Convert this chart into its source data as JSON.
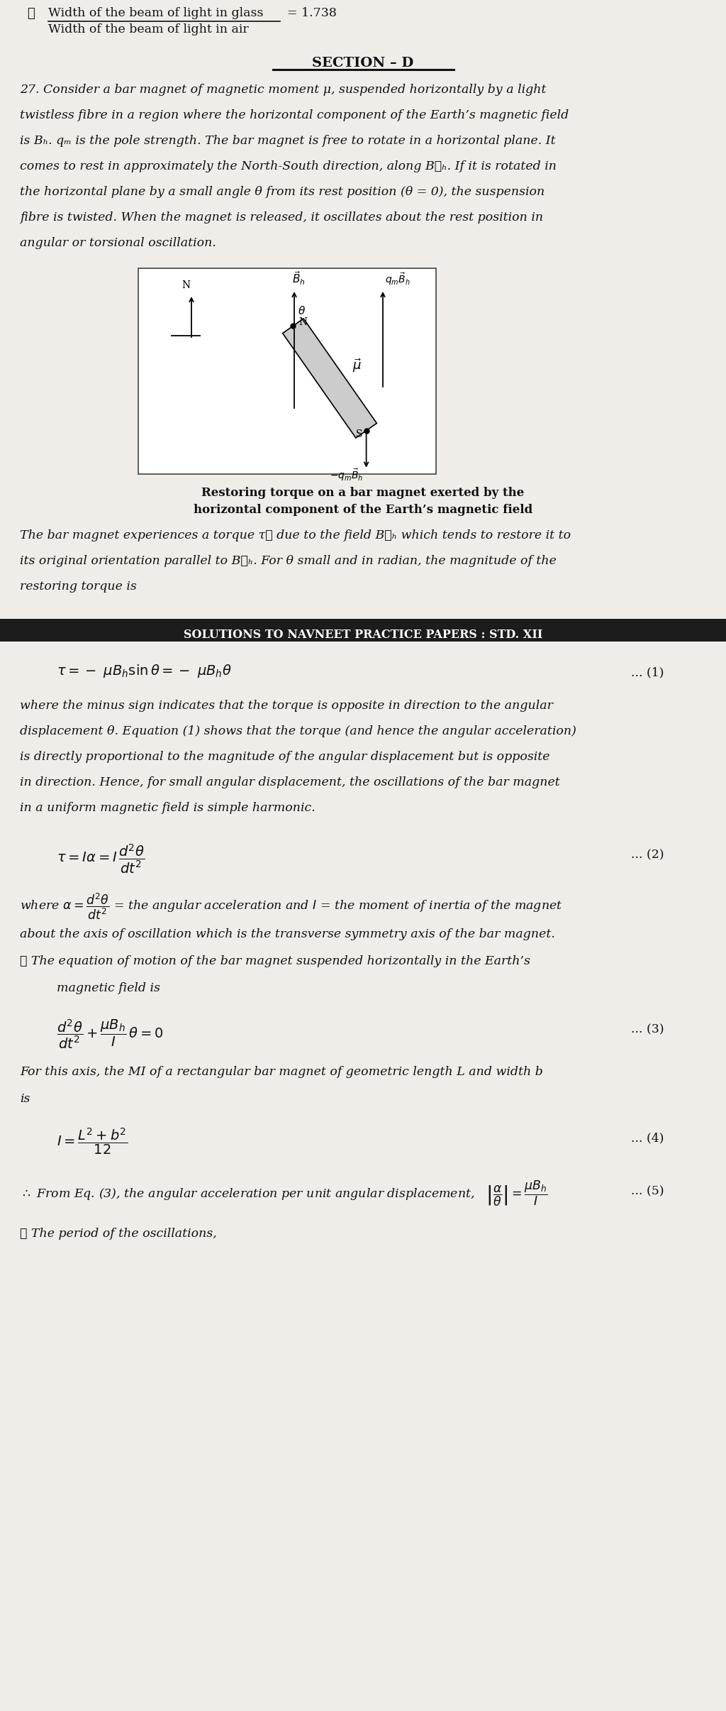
{
  "bg_color": "#f0ede8",
  "text_color": "#111111",
  "top_frac_num": "Width of the beam of light in glass",
  "top_frac_den": "Width of the beam of light in air",
  "top_frac_val": "= 1.738",
  "section_title": "SECTION – D",
  "black_bar_text": "SOLUTIONS TO NAVNEET PRACTICE PAPERS : STD. XII",
  "eq1_num": "... (1)",
  "eq2_num": "... (2)",
  "eq3_num": "... (3)",
  "eq4_num": "... (4)",
  "eq5_num": "... (5)",
  "fig_cap1": "Restoring torque on a bar magnet exerted by the",
  "fig_cap2": "horizontal component of the Earth’s magnetic field",
  "eq2_note3": "about the axis of oscillation which is the transverse symmetry axis of the bar magnet.",
  "eq2_note4": "∴ The equation of motion of the bar magnet suspended horizontally in the Earth’s",
  "eq2_note5": "magnetic field is",
  "eq3_note1": "For this axis, the MI of a rectangular bar magnet of geometric length L and width b",
  "eq3_note2": "is"
}
